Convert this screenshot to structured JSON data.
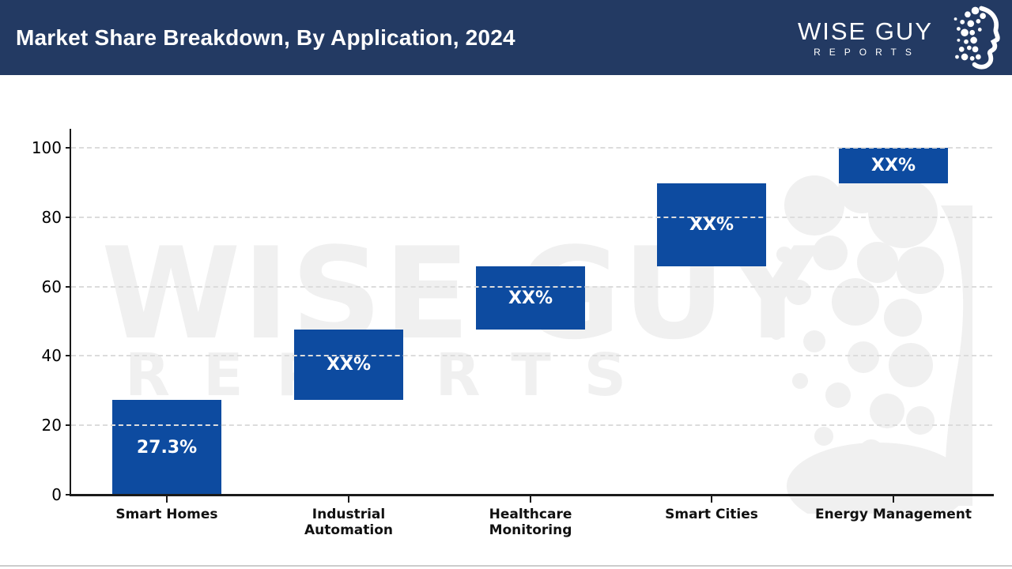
{
  "header": {
    "title": "Market Share Breakdown, By Application, 2024",
    "bg_color": "#233a63",
    "logo": {
      "line1": "WISE GUY",
      "line2": "REPORTS"
    }
  },
  "watermark": {
    "line1": "WISE GUY",
    "line2": "REPORTS"
  },
  "chart_data": {
    "type": "bar",
    "subtype": "waterfall",
    "title": "Market Share Breakdown, By Application, 2024",
    "xlabel": "",
    "ylabel": "",
    "ylim": [
      0,
      100
    ],
    "yticks": [
      0,
      20,
      40,
      60,
      80,
      100
    ],
    "grid": "horizontal-dashed",
    "legend": "none",
    "bar_color": "#0d4ba0",
    "value_label_color": "#ffffff",
    "categories": [
      "Smart Homes",
      "Industrial Automation",
      "Healthcare Monitoring",
      "Smart Cities",
      "Energy Management"
    ],
    "category_lines": [
      [
        "Smart Homes"
      ],
      [
        "Industrial",
        "Automation"
      ],
      [
        "Healthcare",
        "Monitoring"
      ],
      [
        "Smart Cities"
      ],
      [
        "Energy Management"
      ]
    ],
    "segments": [
      {
        "category": "Smart Homes",
        "start": 0,
        "end": 27.3,
        "label": "27.3%"
      },
      {
        "category": "Industrial Automation",
        "start": 27.3,
        "end": 47.5,
        "label": "XX%"
      },
      {
        "category": "Healthcare Monitoring",
        "start": 47.5,
        "end": 65.8,
        "label": "XX%"
      },
      {
        "category": "Smart Cities",
        "start": 65.8,
        "end": 89.8,
        "label": "XX%"
      },
      {
        "category": "Energy Management",
        "start": 89.8,
        "end": 100,
        "label": "XX%"
      }
    ]
  }
}
